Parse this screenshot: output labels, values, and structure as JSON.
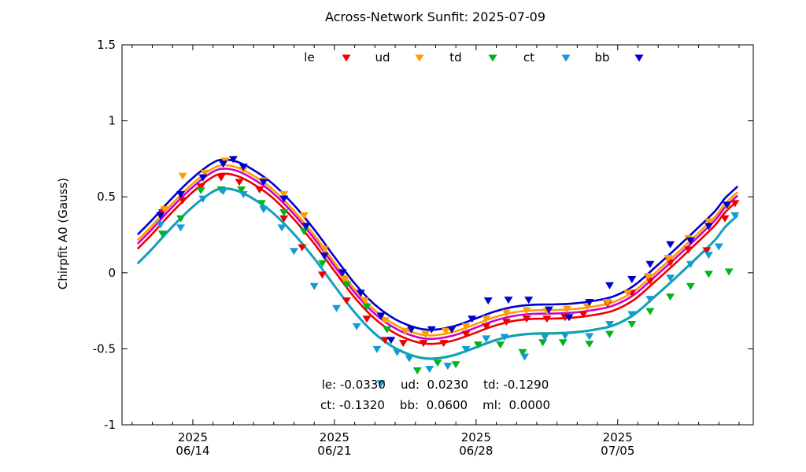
{
  "title": "Across-Network Sunfit: 2025-07-09",
  "ylabel": "Chirpfit A0 (Gauss)",
  "annotations": {
    "line1": "le: -0.0330    ud:  0.0230    td: -0.1290",
    "line2": "ct: -0.1320    bb:  0.0600    ml:  0.0000"
  },
  "legend": [
    {
      "label": "le",
      "color": "#ee0000"
    },
    {
      "label": "ud",
      "color": "#ff9c00"
    },
    {
      "label": "td",
      "color": "#00b41e"
    },
    {
      "label": "ct",
      "color": "#149bd4"
    },
    {
      "label": "bb",
      "color": "#0000cc"
    }
  ],
  "chart_data": {
    "type": "scatter",
    "subtype": "scatter points with chirp-fit lines, one fit per network plus ml master fit",
    "title": "Across-Network Sunfit: 2025-07-09",
    "xlabel": "",
    "ylabel": "Chirpfit A0 (Gauss)",
    "grid": false,
    "legend_position": "top-inside-row",
    "x_axis": {
      "unit": "days after 2025-06-10",
      "range_days": [
        0.5,
        31.7
      ],
      "major_ticks": [
        {
          "day": 4,
          "lines": [
            "2025",
            "06/14"
          ]
        },
        {
          "day": 11,
          "lines": [
            "2025",
            "06/21"
          ]
        },
        {
          "day": 18,
          "lines": [
            "2025",
            "06/28"
          ]
        },
        {
          "day": 25,
          "lines": [
            "2025",
            "07/05"
          ]
        }
      ],
      "minor_tick_days": [
        1,
        2,
        3,
        5,
        6,
        7,
        8,
        9,
        10,
        12,
        13,
        14,
        15,
        16,
        17,
        19,
        20,
        21,
        22,
        23,
        24,
        26,
        27,
        28,
        29,
        30,
        31
      ]
    },
    "y_axis": {
      "range": [
        -1,
        1.5
      ],
      "ticks": [
        {
          "value": 1.5,
          "label": "1.5"
        },
        {
          "value": 1,
          "label": "1"
        },
        {
          "value": 0.5,
          "label": "0.5"
        },
        {
          "value": 0,
          "label": "0"
        },
        {
          "value": -0.5,
          "label": "-0.5"
        },
        {
          "value": -1,
          "label": "-1"
        }
      ]
    },
    "fit_offsets": {
      "le": -0.033,
      "ud": 0.023,
      "td": -0.129,
      "ct": -0.132,
      "bb": 0.06,
      "ml": 0.0
    },
    "curve_draw_order": [
      "td",
      "ct",
      "le",
      "ml",
      "ud",
      "bb"
    ],
    "base_curve_knots": [
      [
        1.3,
        0.195
      ],
      [
        2,
        0.29
      ],
      [
        3,
        0.435
      ],
      [
        4,
        0.565
      ],
      [
        5,
        0.665
      ],
      [
        5.6,
        0.685
      ],
      [
        6.3,
        0.665
      ],
      [
        7.2,
        0.6
      ],
      [
        8,
        0.52
      ],
      [
        9,
        0.385
      ],
      [
        10,
        0.225
      ],
      [
        11,
        0.045
      ],
      [
        12,
        -0.13
      ],
      [
        13,
        -0.27
      ],
      [
        14,
        -0.365
      ],
      [
        15,
        -0.42
      ],
      [
        15.8,
        -0.435
      ],
      [
        16.8,
        -0.415
      ],
      [
        17.8,
        -0.37
      ],
      [
        18.8,
        -0.32
      ],
      [
        19.8,
        -0.285
      ],
      [
        20.8,
        -0.27
      ],
      [
        21.8,
        -0.268
      ],
      [
        22.8,
        -0.262
      ],
      [
        23.8,
        -0.245
      ],
      [
        24.8,
        -0.215
      ],
      [
        25.8,
        -0.145
      ],
      [
        26.8,
        -0.03
      ],
      [
        27.8,
        0.09
      ],
      [
        28.8,
        0.215
      ],
      [
        29.8,
        0.345
      ],
      [
        30.3,
        0.43
      ],
      [
        30.9,
        0.505
      ]
    ],
    "series": [
      {
        "name": "le",
        "color": "#ee0000",
        "marker": "triangle-down",
        "points": [
          [
            2.5,
            0.4
          ],
          [
            3.5,
            0.48
          ],
          [
            4.4,
            0.57
          ],
          [
            5.4,
            0.63
          ],
          [
            6.3,
            0.6
          ],
          [
            7.3,
            0.55
          ],
          [
            8.5,
            0.36
          ],
          [
            9.4,
            0.17
          ],
          [
            10.4,
            -0.01
          ],
          [
            11.6,
            -0.18
          ],
          [
            12.6,
            -0.3
          ],
          [
            13.5,
            -0.44
          ],
          [
            14.4,
            -0.46
          ],
          [
            15.4,
            -0.46
          ],
          [
            16.4,
            -0.46
          ],
          [
            17.5,
            -0.4
          ],
          [
            18.5,
            -0.35
          ],
          [
            19.5,
            -0.32
          ],
          [
            20.5,
            -0.3
          ],
          [
            21.5,
            -0.3
          ],
          [
            22.4,
            -0.29
          ],
          [
            23.3,
            -0.27
          ],
          [
            24.5,
            -0.2
          ],
          [
            25.7,
            -0.13
          ],
          [
            26.6,
            -0.05
          ],
          [
            27.6,
            0.07
          ],
          [
            28.5,
            0.155
          ],
          [
            29.4,
            0.15
          ],
          [
            30.3,
            0.36
          ],
          [
            30.8,
            0.46
          ]
        ]
      },
      {
        "name": "ud",
        "color": "#ff9c00",
        "marker": "triangle-down",
        "points": [
          [
            2.6,
            0.42
          ],
          [
            3.5,
            0.64
          ],
          [
            4.6,
            0.66
          ],
          [
            5.6,
            0.74
          ],
          [
            6.5,
            0.68
          ],
          [
            7.5,
            0.61
          ],
          [
            8.5,
            0.52
          ],
          [
            9.5,
            0.38
          ],
          [
            10.5,
            0.16
          ],
          [
            11.5,
            -0.04
          ],
          [
            12.5,
            -0.18
          ],
          [
            13.5,
            -0.31
          ],
          [
            14.5,
            -0.38
          ],
          [
            15.5,
            -0.4
          ],
          [
            16.5,
            -0.38
          ],
          [
            17.5,
            -0.35
          ],
          [
            18.5,
            -0.3
          ],
          [
            19.5,
            -0.26
          ],
          [
            20.5,
            -0.245
          ],
          [
            21.5,
            -0.25
          ],
          [
            22.5,
            -0.235
          ],
          [
            23.5,
            -0.22
          ],
          [
            24.5,
            -0.19
          ],
          [
            25.5,
            -0.13
          ],
          [
            26.5,
            -0.02
          ],
          [
            27.5,
            0.1
          ],
          [
            28.5,
            0.23
          ],
          [
            29.5,
            0.34
          ],
          [
            30.4,
            0.44
          ]
        ]
      },
      {
        "name": "td",
        "color": "#00b41e",
        "marker": "triangle-down",
        "points": [
          [
            2.5,
            0.26
          ],
          [
            3.4,
            0.36
          ],
          [
            4.4,
            0.545
          ],
          [
            5.4,
            0.55
          ],
          [
            6.4,
            0.55
          ],
          [
            7.4,
            0.46
          ],
          [
            8.5,
            0.4
          ],
          [
            9.5,
            0.275
          ],
          [
            10.4,
            0.065
          ],
          [
            11.6,
            -0.075
          ],
          [
            12.6,
            -0.22
          ],
          [
            13.6,
            -0.37
          ],
          [
            15.1,
            -0.64
          ],
          [
            16.1,
            -0.59
          ],
          [
            17.0,
            -0.6
          ],
          [
            18.1,
            -0.47
          ],
          [
            19.2,
            -0.47
          ],
          [
            20.3,
            -0.52
          ],
          [
            21.3,
            -0.455
          ],
          [
            22.3,
            -0.455
          ],
          [
            23.6,
            -0.465
          ],
          [
            24.6,
            -0.4
          ],
          [
            25.7,
            -0.335
          ],
          [
            26.6,
            -0.25
          ],
          [
            27.6,
            -0.155
          ],
          [
            28.6,
            -0.085
          ],
          [
            29.5,
            -0.005
          ],
          [
            30.5,
            0.01
          ]
        ]
      },
      {
        "name": "ct",
        "color": "#149bd4",
        "marker": "triangle-down",
        "points": [
          [
            2.4,
            0.32
          ],
          [
            3.4,
            0.3
          ],
          [
            4.5,
            0.49
          ],
          [
            5.5,
            0.54
          ],
          [
            6.5,
            0.52
          ],
          [
            7.5,
            0.42
          ],
          [
            8.4,
            0.3
          ],
          [
            9.0,
            0.145
          ],
          [
            10.0,
            -0.085
          ],
          [
            11.1,
            -0.23
          ],
          [
            12.1,
            -0.35
          ],
          [
            13.1,
            -0.5
          ],
          [
            13.3,
            -0.725
          ],
          [
            14.1,
            -0.52
          ],
          [
            14.7,
            -0.56
          ],
          [
            15.7,
            -0.63
          ],
          [
            16.6,
            -0.61
          ],
          [
            17.5,
            -0.5
          ],
          [
            18.5,
            -0.43
          ],
          [
            19.4,
            -0.42
          ],
          [
            20.4,
            -0.55
          ],
          [
            21.4,
            -0.42
          ],
          [
            22.4,
            -0.41
          ],
          [
            23.6,
            -0.415
          ],
          [
            24.6,
            -0.335
          ],
          [
            25.7,
            -0.27
          ],
          [
            26.6,
            -0.17
          ],
          [
            27.6,
            -0.03
          ],
          [
            28.6,
            0.06
          ],
          [
            29.5,
            0.12
          ],
          [
            30.0,
            0.175
          ],
          [
            30.8,
            0.38
          ]
        ]
      },
      {
        "name": "bb",
        "color": "#0000cc",
        "marker": "triangle-down",
        "points": [
          [
            2.4,
            0.38
          ],
          [
            3.4,
            0.52
          ],
          [
            4.5,
            0.63
          ],
          [
            5.5,
            0.72
          ],
          [
            6.0,
            0.75
          ],
          [
            6.5,
            0.7
          ],
          [
            7.5,
            0.6
          ],
          [
            8.5,
            0.49
          ],
          [
            9.6,
            0.31
          ],
          [
            10.5,
            0.115
          ],
          [
            11.4,
            0.005
          ],
          [
            12.3,
            -0.13
          ],
          [
            13.3,
            -0.28
          ],
          [
            13.8,
            -0.44
          ],
          [
            14.8,
            -0.37
          ],
          [
            15.8,
            -0.37
          ],
          [
            16.8,
            -0.37
          ],
          [
            17.8,
            -0.3
          ],
          [
            18.6,
            -0.18
          ],
          [
            19.6,
            -0.175
          ],
          [
            20.6,
            -0.175
          ],
          [
            21.6,
            -0.24
          ],
          [
            22.6,
            -0.29
          ],
          [
            23.6,
            -0.19
          ],
          [
            24.6,
            -0.08
          ],
          [
            25.7,
            -0.04
          ],
          [
            26.6,
            0.06
          ],
          [
            27.6,
            0.19
          ],
          [
            28.6,
            0.215
          ],
          [
            29.5,
            0.31
          ],
          [
            30.4,
            0.45
          ]
        ]
      },
      {
        "name": "ml",
        "color": "#cc00cc",
        "marker": "none",
        "points": []
      }
    ]
  }
}
